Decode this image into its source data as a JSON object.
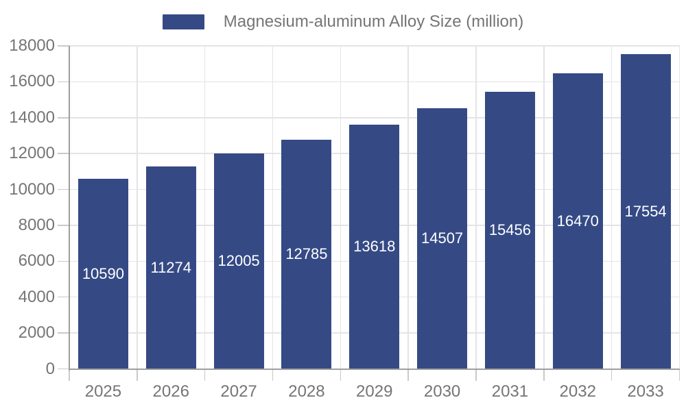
{
  "legend": {
    "label": "Magnesium-aluminum Alloy Size (million)"
  },
  "chart_data": {
    "type": "bar",
    "title": "",
    "xlabel": "",
    "ylabel": "",
    "categories": [
      "2025",
      "2026",
      "2027",
      "2028",
      "2029",
      "2030",
      "2031",
      "2032",
      "2033"
    ],
    "series": [
      {
        "name": "Magnesium-aluminum Alloy Size (million)",
        "values": [
          10590,
          11274,
          12005,
          12785,
          13618,
          14507,
          15456,
          16470,
          17554
        ]
      }
    ],
    "value_labels": [
      "10590",
      "11274",
      "12005",
      "12785",
      "13618",
      "14507",
      "15456",
      "16470",
      "17554"
    ],
    "ylim": [
      0,
      18000
    ],
    "ytick_labels": [
      "0",
      "2000",
      "4000",
      "6000",
      "8000",
      "10000",
      "12000",
      "14000",
      "16000",
      "18000"
    ],
    "grid": true,
    "legend_position": "top",
    "colors": {
      "bar": "#354A85",
      "axis_line": "#9E9E9E",
      "grid_line": "#E4E4E8",
      "tick_line": "#C9C9C9",
      "text": "#757575",
      "bar_label_text": "#FFFFFF",
      "background": "#FFFFFF"
    }
  }
}
